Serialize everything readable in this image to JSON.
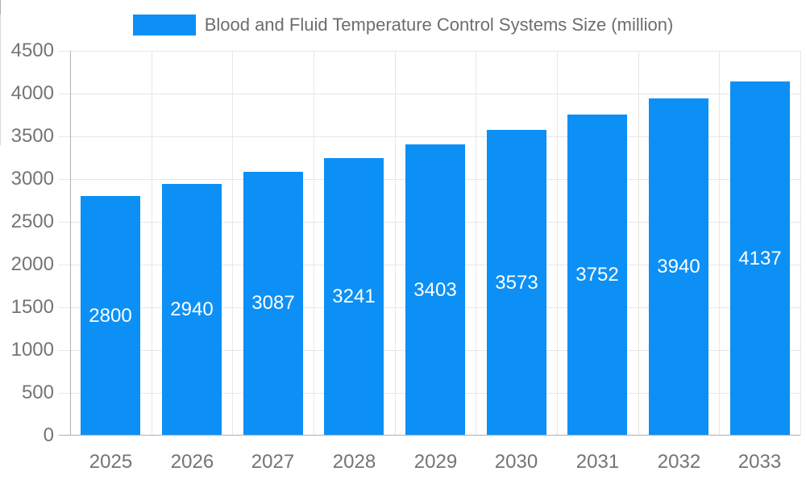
{
  "legend": {
    "label": "Blood and Fluid Temperature Control Systems Size (million)"
  },
  "chart_data": {
    "type": "bar",
    "title": "Blood and Fluid Temperature Control Systems Size (million)",
    "categories": [
      "2025",
      "2026",
      "2027",
      "2028",
      "2029",
      "2030",
      "2031",
      "2032",
      "2033"
    ],
    "values": [
      2800,
      2940,
      3087,
      3241,
      3403,
      3573,
      3752,
      3940,
      4137
    ],
    "xlabel": "",
    "ylabel": "",
    "ylim": [
      0,
      4500
    ],
    "ytick_step": 500,
    "ytick_labels": [
      "0",
      "500",
      "1000",
      "1500",
      "2000",
      "2500",
      "3000",
      "3500",
      "4000",
      "4500"
    ],
    "grid": true,
    "legend_position": "top-center",
    "bar_color": "#0c90f6",
    "bar_label_color": "#ffffff",
    "axis_color": "#b0b0b0",
    "grid_color": "#e7e7e7",
    "tick_color": "#d9d9d9",
    "text_color": "#747474"
  }
}
